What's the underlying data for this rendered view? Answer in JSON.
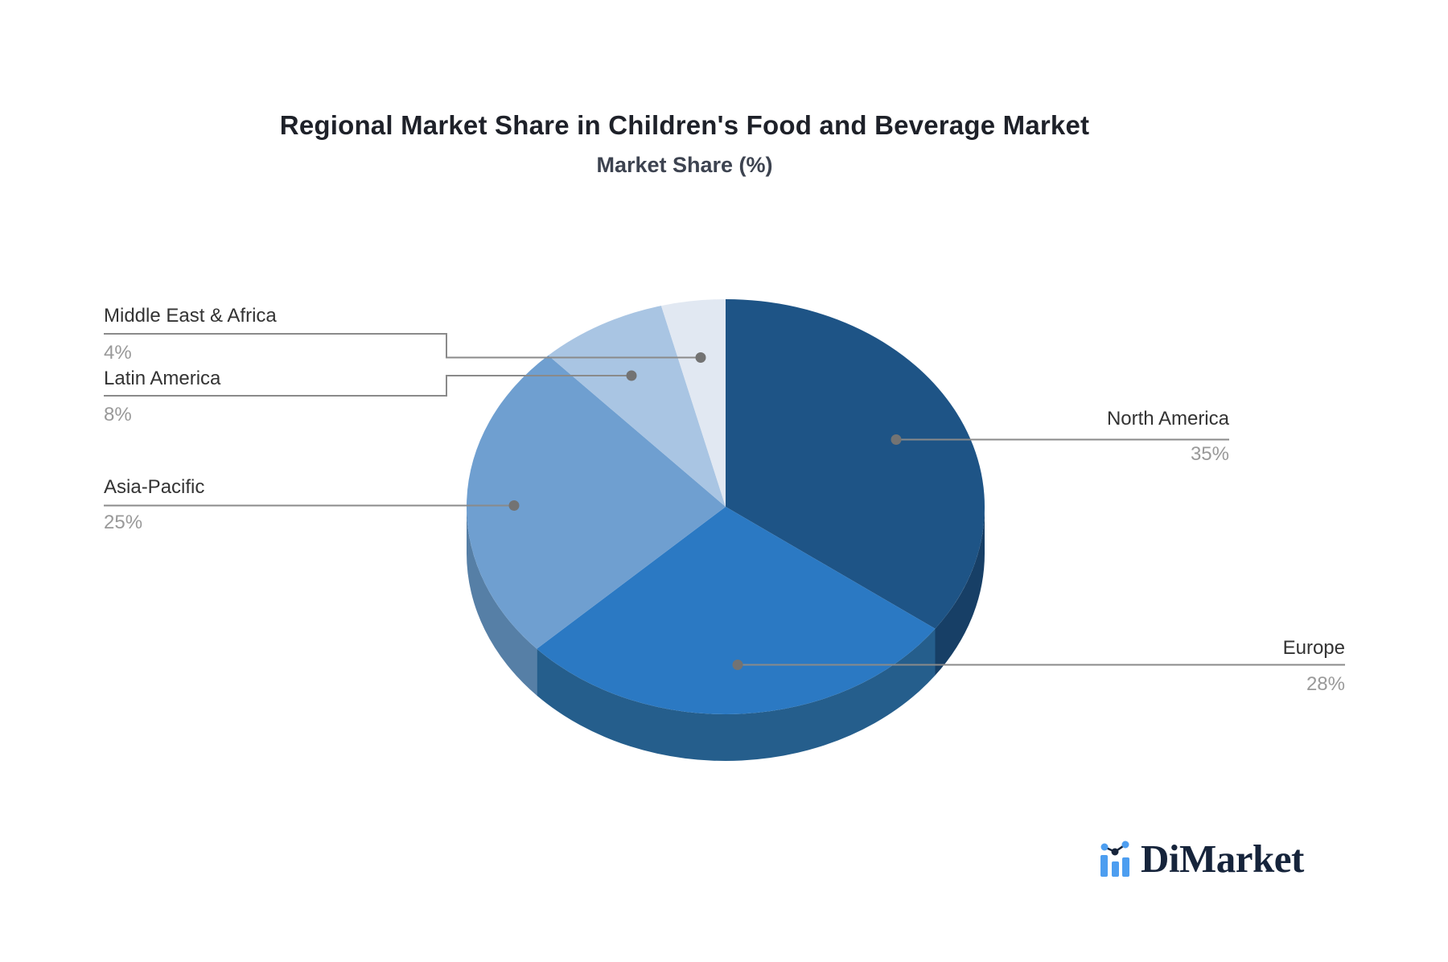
{
  "chart": {
    "title": "Regional Market Share in Children's Food and Beverage Market",
    "subtitle": "Market Share (%)"
  },
  "chart_data": {
    "type": "pie",
    "title": "Regional Market Share in Children's Food and Beverage Market",
    "subtitle": "Market Share (%)",
    "unit": "%",
    "style": "3d-pie-with-depth",
    "start_angle_deg": 0,
    "direction": "clockwise",
    "legend": "none",
    "label_style": "outside labels with gray leader lines; region name above underline, percent value below",
    "slices": [
      {
        "label": "North America",
        "value": 35,
        "display": "35%",
        "color": "#1E5486",
        "side_color": "#173F66",
        "label_side": "right"
      },
      {
        "label": "Europe",
        "value": 28,
        "display": "28%",
        "color": "#2B79C3",
        "side_color": "#255E8C",
        "label_side": "right"
      },
      {
        "label": "Asia-Pacific",
        "value": 25,
        "display": "25%",
        "color": "#6F9FD0",
        "side_color": "#567FA6",
        "label_side": "left"
      },
      {
        "label": "Latin America",
        "value": 8,
        "display": "8%",
        "color": "#A9C5E3",
        "side_color": "#8BA8C4",
        "label_side": "left"
      },
      {
        "label": "Middle East & Africa",
        "value": 4,
        "display": "4%",
        "color": "#E1E8F2",
        "side_color": "#BCC9D8",
        "label_side": "left"
      }
    ]
  },
  "logo": {
    "text": "DiMarket",
    "icon": "bar-chart-icon"
  },
  "colors": {
    "background": "#FFFFFF",
    "title": "#1E2129",
    "subtitle": "#3D4350",
    "label_text": "#333333",
    "value_text": "#999999",
    "leader_line": "#8A8A8A",
    "leader_dot": "#737373",
    "logo_text": "#16243B",
    "logo_icon_blue": "#4D9EF0"
  }
}
